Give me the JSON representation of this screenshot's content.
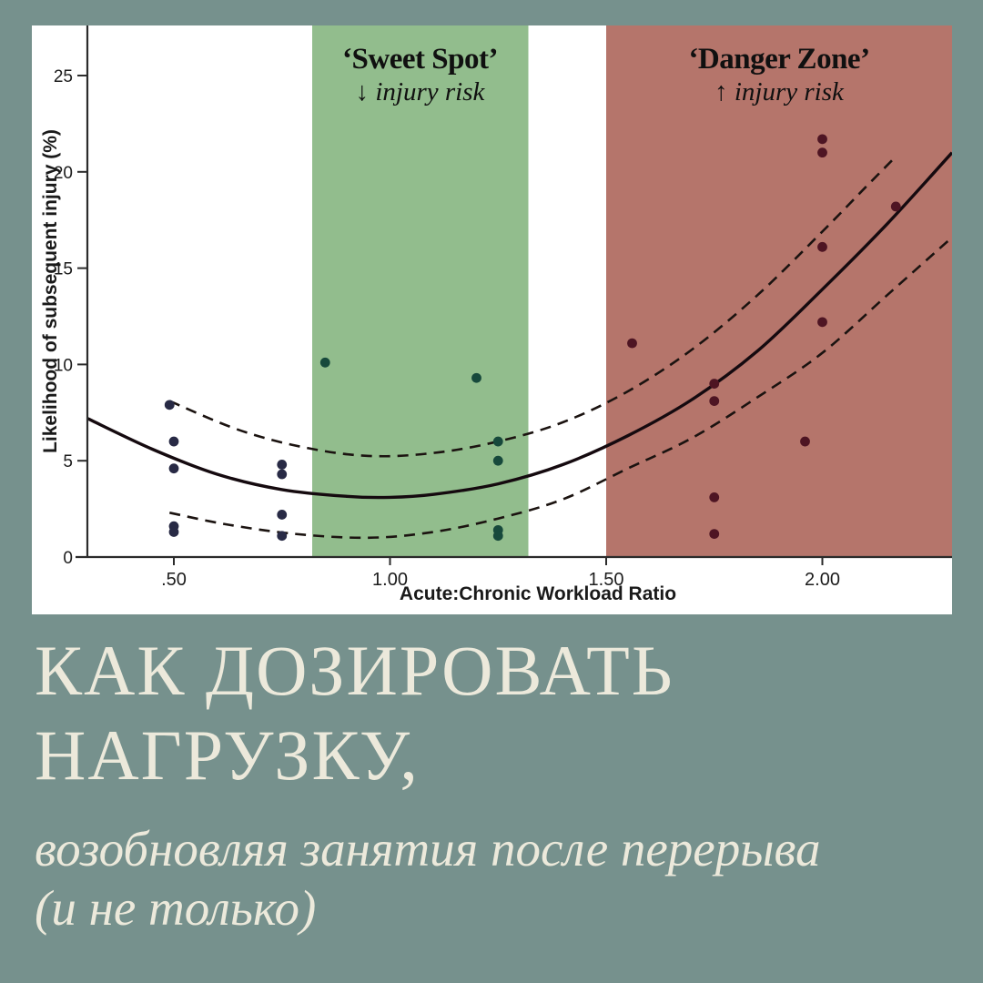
{
  "colors": {
    "background": "#76918d",
    "panel": "#ffffff",
    "heading_text": "#ece9db",
    "sweet_spot_fill": "#92bd8d",
    "danger_zone_fill": "#b5756b",
    "axis": "#2b2b2b",
    "tick_label": "#1c1c1c"
  },
  "chart": {
    "y_axis_label": "Likelihood of subsequent injury (%)",
    "x_axis_label": "Acute:Chronic Workload Ratio",
    "sweet_spot": {
      "title": "‘Sweet Spot’",
      "subtitle": "↓ injury risk"
    },
    "danger_zone": {
      "title": "‘Danger Zone’",
      "subtitle": "↑ injury risk"
    }
  },
  "chart_data": {
    "type": "scatter",
    "title": "",
    "xlabel": "Acute:Chronic Workload Ratio",
    "ylabel": "Likelihood of subsequent injury (%)",
    "xlim": [
      0.3,
      2.3
    ],
    "ylim": [
      0,
      27.6
    ],
    "grid": false,
    "legend": false,
    "x_ticks": [
      {
        "v": 0.5,
        "label": ".50"
      },
      {
        "v": 1.0,
        "label": "1.00"
      },
      {
        "v": 1.5,
        "label": "1.50"
      },
      {
        "v": 2.0,
        "label": "2.00"
      }
    ],
    "y_ticks": [
      {
        "v": 0,
        "label": "0"
      },
      {
        "v": 5,
        "label": "5"
      },
      {
        "v": 10,
        "label": "10"
      },
      {
        "v": 15,
        "label": "15"
      },
      {
        "v": 20,
        "label": "20"
      },
      {
        "v": 25,
        "label": "25"
      }
    ],
    "zones": [
      {
        "name": "sweet-spot-band",
        "x0": 0.82,
        "x1": 1.32,
        "color": "#92bd8d"
      },
      {
        "name": "danger-zone-band",
        "x0": 1.5,
        "x1": 2.3,
        "color": "#b5756b"
      }
    ],
    "series": [
      {
        "name": "observed-points-low-acwr",
        "type": "scatter",
        "color": "#282a45",
        "points": [
          [
            0.49,
            7.9
          ],
          [
            0.5,
            6.0
          ],
          [
            0.5,
            4.6
          ],
          [
            0.5,
            1.6
          ],
          [
            0.5,
            1.3
          ],
          [
            0.75,
            4.8
          ],
          [
            0.75,
            4.3
          ],
          [
            0.75,
            2.2
          ],
          [
            0.75,
            1.1
          ]
        ]
      },
      {
        "name": "observed-points-sweet-spot",
        "type": "scatter",
        "color": "#17493c",
        "points": [
          [
            0.85,
            10.1
          ],
          [
            1.2,
            9.3
          ],
          [
            1.25,
            6.0
          ],
          [
            1.25,
            5.0
          ],
          [
            1.25,
            1.4
          ],
          [
            1.25,
            1.1
          ]
        ]
      },
      {
        "name": "observed-points-danger-zone",
        "type": "scatter",
        "color": "#4e1523",
        "points": [
          [
            1.56,
            11.1
          ],
          [
            1.75,
            9.0
          ],
          [
            1.75,
            8.1
          ],
          [
            1.75,
            3.1
          ],
          [
            1.75,
            1.2
          ],
          [
            1.96,
            6.0
          ],
          [
            2.0,
            21.7
          ],
          [
            2.0,
            21.0
          ],
          [
            2.0,
            16.1
          ],
          [
            2.0,
            12.2
          ],
          [
            2.17,
            18.2
          ]
        ]
      },
      {
        "name": "fitted-injury-likelihood-curve",
        "type": "line",
        "style": "solid",
        "color": "#150a0f",
        "width": 3.4,
        "points": [
          [
            0.3,
            7.2
          ],
          [
            0.45,
            5.6
          ],
          [
            0.6,
            4.3
          ],
          [
            0.75,
            3.5
          ],
          [
            0.9,
            3.15
          ],
          [
            1.0,
            3.1
          ],
          [
            1.1,
            3.25
          ],
          [
            1.25,
            3.8
          ],
          [
            1.4,
            4.8
          ],
          [
            1.55,
            6.3
          ],
          [
            1.7,
            8.2
          ],
          [
            1.85,
            10.7
          ],
          [
            2.0,
            13.9
          ],
          [
            2.15,
            17.3
          ],
          [
            2.3,
            21.0
          ]
        ]
      },
      {
        "name": "upper-confidence-band",
        "type": "line",
        "style": "dashed",
        "color": "#1b1310",
        "width": 2.6,
        "points": [
          [
            0.49,
            8.1
          ],
          [
            0.65,
            6.6
          ],
          [
            0.8,
            5.7
          ],
          [
            0.95,
            5.25
          ],
          [
            1.1,
            5.4
          ],
          [
            1.25,
            6.0
          ],
          [
            1.4,
            7.0
          ],
          [
            1.55,
            8.6
          ],
          [
            1.7,
            10.8
          ],
          [
            1.85,
            13.6
          ],
          [
            2.0,
            16.9
          ],
          [
            2.1,
            19.2
          ],
          [
            2.17,
            20.8
          ]
        ]
      },
      {
        "name": "lower-confidence-band",
        "type": "line",
        "style": "dashed",
        "color": "#1b1310",
        "width": 2.6,
        "points": [
          [
            0.49,
            2.3
          ],
          [
            0.62,
            1.7
          ],
          [
            0.78,
            1.2
          ],
          [
            0.95,
            1.0
          ],
          [
            1.1,
            1.3
          ],
          [
            1.25,
            2.0
          ],
          [
            1.4,
            3.0
          ],
          [
            1.55,
            4.6
          ],
          [
            1.7,
            6.2
          ],
          [
            1.85,
            8.3
          ],
          [
            2.0,
            10.6
          ],
          [
            2.15,
            13.6
          ],
          [
            2.3,
            16.6
          ]
        ]
      }
    ]
  },
  "heading": {
    "line1": "КАК ДОЗИРОВАТЬ",
    "line2": "НАГРУЗКУ,",
    "line3": "возобновляя занятия после перерыва",
    "line4": "(и не только)"
  }
}
